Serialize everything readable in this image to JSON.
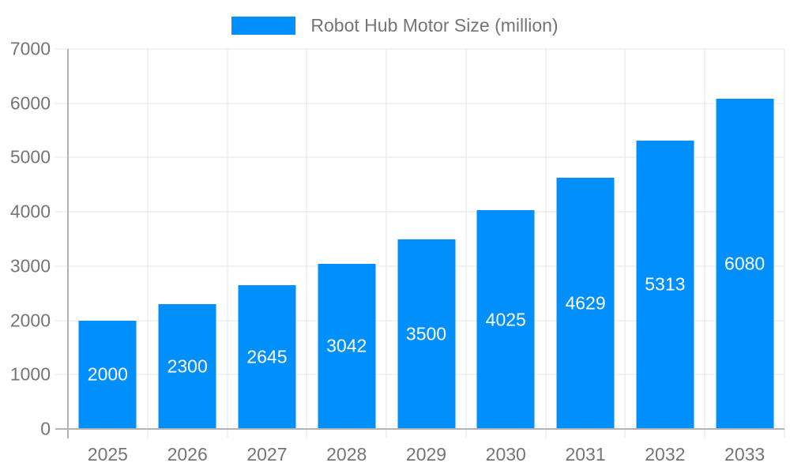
{
  "chart_data": {
    "type": "bar",
    "title": "Robot Hub Motor Size (million)",
    "categories": [
      "2025",
      "2026",
      "2027",
      "2028",
      "2029",
      "2030",
      "2031",
      "2032",
      "2033"
    ],
    "series": [
      {
        "name": "Robot Hub Motor Size (million)",
        "values": [
          2000,
          2300,
          2645,
          3042,
          3500,
          4025,
          4629,
          5313,
          6080
        ]
      }
    ],
    "data_labels": [
      "2000",
      "2300",
      "2645",
      "3042",
      "3500",
      "4025",
      "4629",
      "5313",
      "6080"
    ],
    "xlabel": "",
    "ylabel": "",
    "ylim": [
      0,
      7000
    ],
    "yticks": [
      0,
      1000,
      2000,
      3000,
      4000,
      5000,
      6000,
      7000
    ],
    "ytick_labels": [
      "0",
      "1000",
      "2000",
      "3000",
      "4000",
      "5000",
      "6000",
      "7000"
    ],
    "grid": true,
    "legend_position": "top-center",
    "colors": {
      "bar": "#008FFB",
      "data_label": "#ffffff",
      "axis_label": "#757575",
      "legend_label": "#757575",
      "gridline": "#e6e6e6",
      "axis_line": "#b3b3b3",
      "background": "#ffffff"
    }
  }
}
